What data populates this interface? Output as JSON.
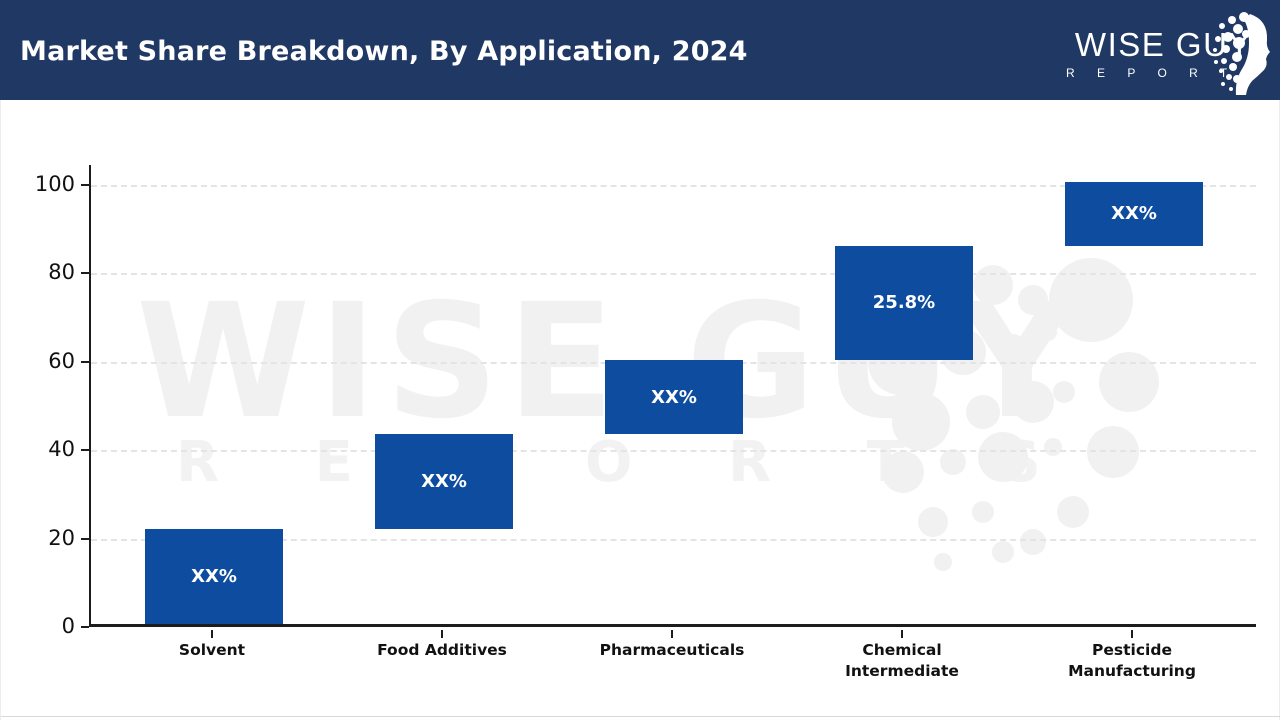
{
  "header": {
    "title": "Market Share Breakdown, By Application, 2024",
    "background_color": "#203864",
    "logo": {
      "line1": "WISE GUY",
      "line2": "R E P O R T S",
      "icon": "dotted-head-profile"
    }
  },
  "watermark": {
    "line1": "WISE GUY",
    "line2": "R E P O R T S"
  },
  "chart_data": {
    "type": "bar",
    "subtype": "waterfall-floating-bars",
    "title": "Market Share Breakdown, By Application, 2024",
    "categories": [
      [
        "Solvent"
      ],
      [
        "Food Additives"
      ],
      [
        "Pharmaceuticals"
      ],
      [
        "Chemical",
        "Intermediate"
      ],
      [
        "Pesticide",
        "Manufacturing"
      ]
    ],
    "series": [
      {
        "name": "Market Share (%)",
        "starts": [
          0,
          21.5,
          42.9,
          59.8,
          85.6
        ],
        "ends": [
          21.5,
          42.9,
          59.8,
          85.6,
          100
        ],
        "values": [
          21.5,
          21.4,
          16.9,
          25.8,
          14.4
        ]
      }
    ],
    "bar_labels": [
      "XX%",
      "XX%",
      "XX%",
      "25.8%",
      "XX%"
    ],
    "bar_color": "#0d4c9e",
    "bar_label_color": "#ffffff",
    "xlabel": "",
    "ylabel": "",
    "ylim": [
      0,
      104.5
    ],
    "yticks": [
      0,
      20,
      40,
      60,
      80,
      100
    ],
    "grid": "horizontal-dashed",
    "gridline_color": "#e4e4e4",
    "axis_color": "#1c1c1c",
    "legend": "none"
  }
}
